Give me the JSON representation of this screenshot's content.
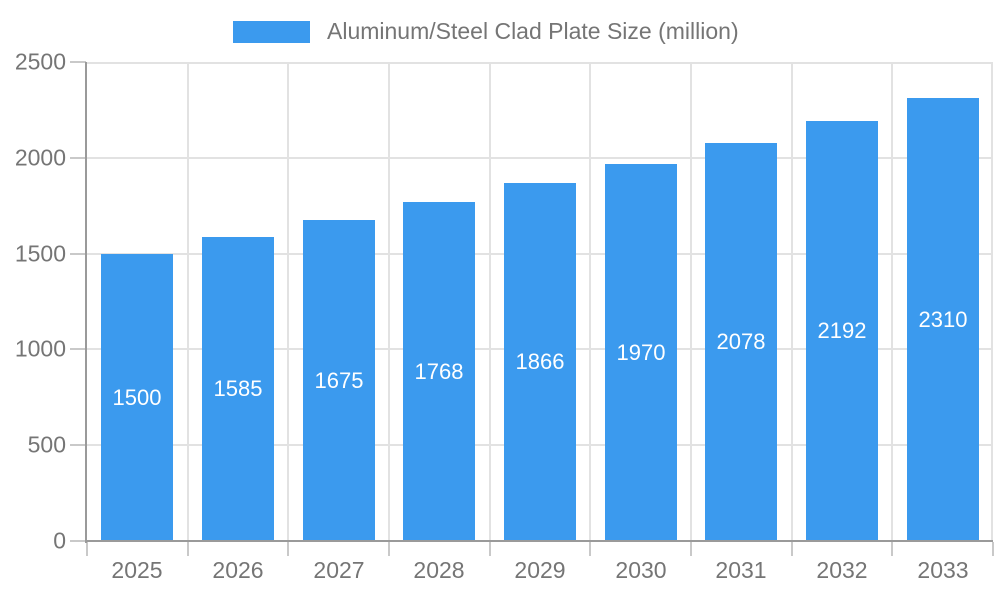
{
  "chart_data": {
    "type": "bar",
    "title": "Aluminum/Steel Clad Plate Size (million)",
    "legend": "Aluminum/Steel Clad Plate Size (million)",
    "legend_position": "top",
    "categories": [
      "2025",
      "2026",
      "2027",
      "2028",
      "2029",
      "2030",
      "2031",
      "2032",
      "2033"
    ],
    "values": [
      1500,
      1585,
      1675,
      1768,
      1866,
      1970,
      2078,
      2192,
      2310
    ],
    "xlabel": "",
    "ylabel": "",
    "ylim": [
      0,
      2500
    ],
    "yticks": [
      0,
      500,
      1000,
      1500,
      2000,
      2500
    ],
    "grid": true,
    "bar_labels_visible": true,
    "colors": {
      "bar": "#3B9AEE",
      "bar_label": "#FFFFFF",
      "axis_text": "#757575",
      "grid_line": "#E2E2E2",
      "axis_line": "#9A9A9A",
      "tick": "#C9C9C9",
      "background": "#FFFFFF"
    }
  }
}
